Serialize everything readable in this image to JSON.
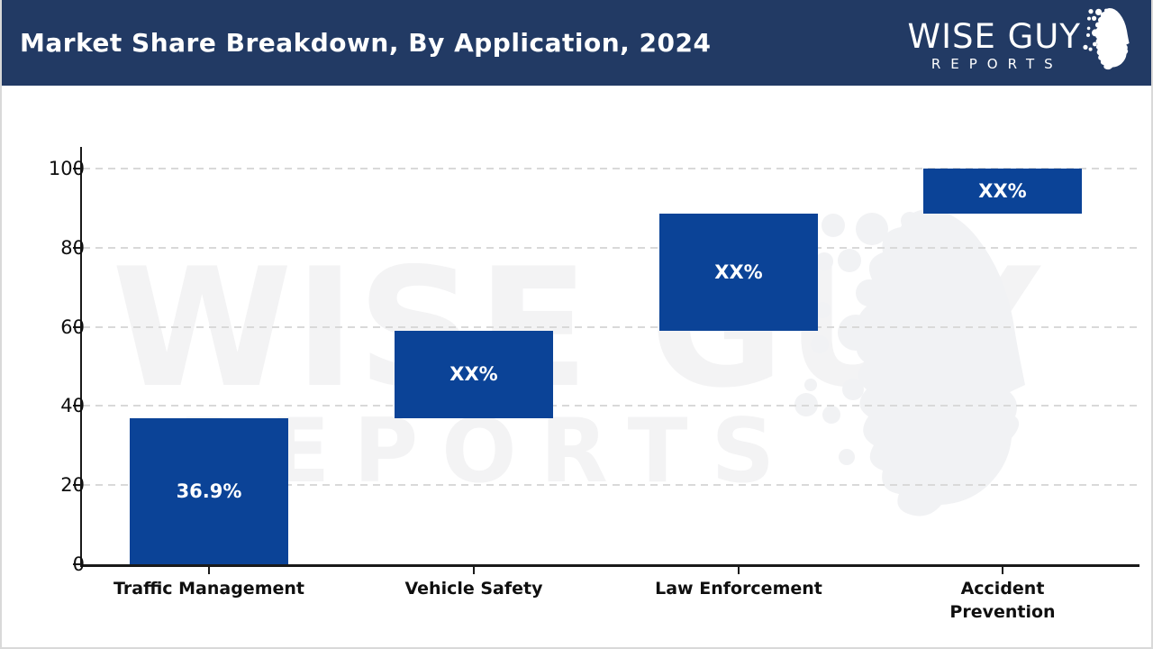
{
  "header": {
    "title": "Market Share Breakdown, By Application, 2024",
    "logo": {
      "brand": "WISE GUY",
      "sub": "REPORTS"
    }
  },
  "watermark": {
    "line1": "WISE GUY",
    "line2": "REPORTS"
  },
  "chart_data": {
    "type": "bar",
    "subtype": "waterfall",
    "title": "Market Share Breakdown, By Application, 2024",
    "categories": [
      "Traffic Management",
      "Vehicle Safety",
      "Law Enforcement",
      "Accident\nPrevention"
    ],
    "segments": [
      {
        "category": "Traffic Management",
        "start": 0,
        "end": 36.9,
        "label": "36.9%"
      },
      {
        "category": "Vehicle Safety",
        "start": 36.9,
        "end": 59.0,
        "label": "XX%"
      },
      {
        "category": "Law Enforcement",
        "start": 59.0,
        "end": 88.5,
        "label": "XX%"
      },
      {
        "category": "Accident Prevention",
        "start": 88.5,
        "end": 100.0,
        "label": "XX%"
      }
    ],
    "ylim": [
      0,
      105
    ],
    "yticks": [
      0,
      20,
      40,
      60,
      80,
      100
    ],
    "xlabel": "",
    "ylabel": "",
    "grid": "horizontal-dashed",
    "legend": "none",
    "bar_color": "#0b4397",
    "bar_label_color": "#ffffff"
  }
}
